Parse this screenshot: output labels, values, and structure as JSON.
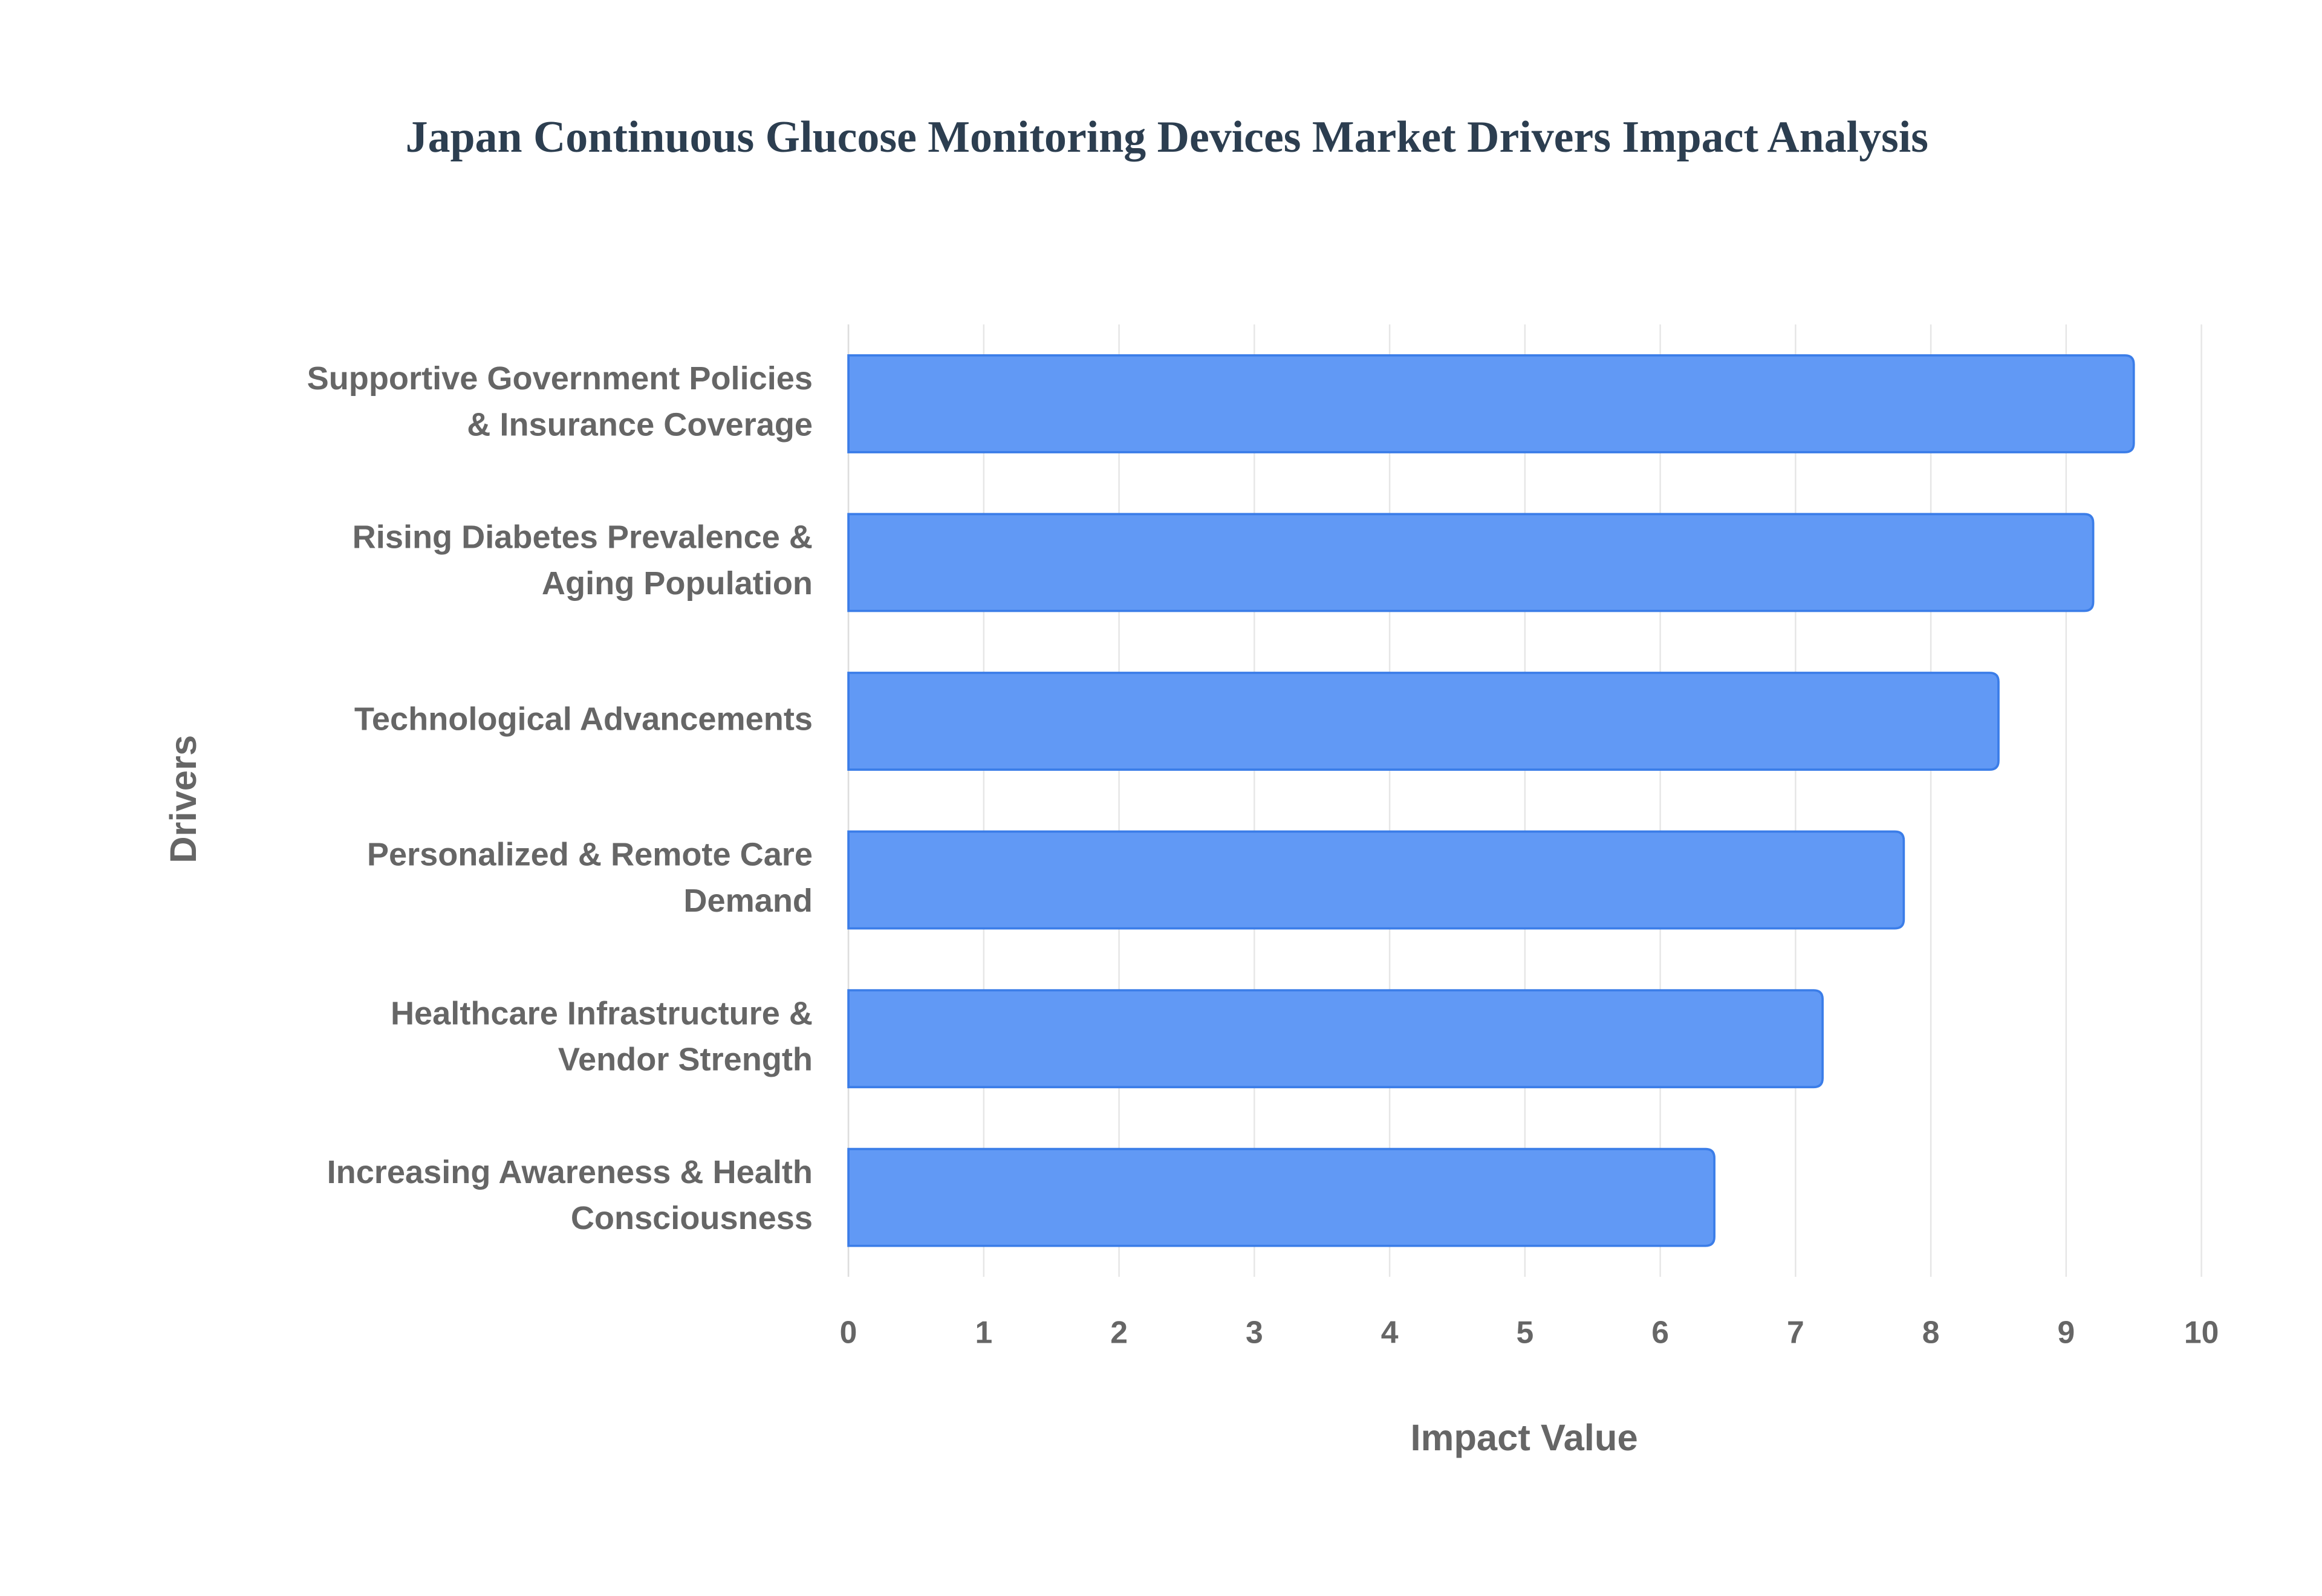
{
  "chart_data": {
    "type": "bar",
    "orientation": "horizontal",
    "title": "Japan Continuous Glucose Monitoring Devices Market Drivers Impact Analysis",
    "x_label": "Impact Value",
    "y_label": "Drivers",
    "categories": [
      [
        "Supportive Government Policies",
        "& Insurance Coverage"
      ],
      [
        "Rising Diabetes Prevalence &",
        "Aging Population"
      ],
      [
        "Technological Advancements"
      ],
      [
        "Personalized & Remote Care",
        "Demand"
      ],
      [
        "Healthcare Infrastructure &",
        "Vendor Strength"
      ],
      [
        "Increasing Awareness & Health",
        "Consciousness"
      ]
    ],
    "values": [
      9.5,
      9.2,
      8.5,
      7.8,
      7.2,
      6.4
    ],
    "color": "#6199f5",
    "edge_color": "#3b7de8",
    "xlim": [
      0,
      10
    ],
    "xticks": [
      0,
      1,
      2,
      3,
      4,
      5,
      6,
      7,
      8,
      9,
      10
    ],
    "grid": true
  }
}
